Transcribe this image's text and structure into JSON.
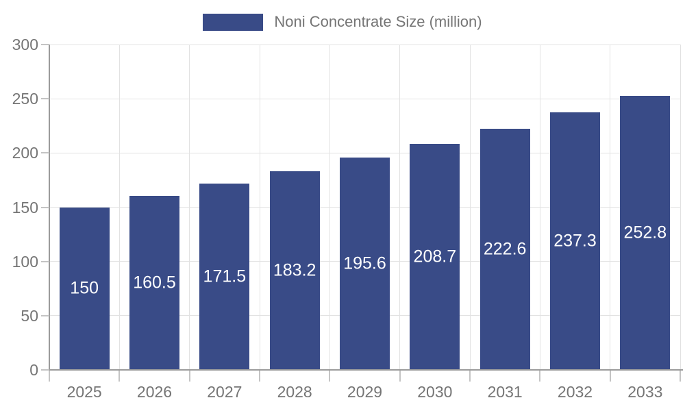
{
  "legend": {
    "label": "Noni Concentrate Size (million)"
  },
  "chart_data": {
    "type": "bar",
    "title": "",
    "legend_position": "top",
    "grid": true,
    "categories": [
      "2025",
      "2026",
      "2027",
      "2028",
      "2029",
      "2030",
      "2031",
      "2032",
      "2033"
    ],
    "series": [
      {
        "name": "Noni Concentrate Size (million)",
        "values": [
          150,
          160.5,
          171.5,
          183.2,
          195.6,
          208.7,
          222.6,
          237.3,
          252.8
        ]
      }
    ],
    "xlabel": "",
    "ylabel": "",
    "ylim": [
      0,
      300
    ],
    "yticks": [
      0,
      50,
      100,
      150,
      200,
      250,
      300
    ],
    "colors": {
      "bar": "#394b87",
      "value_label": "#ffffff",
      "axis_text": "#757575",
      "legend_text": "#757575",
      "axis_line": "#9b9b9b",
      "tick_line": "#c4c4c4",
      "gridline": "#e2e2e2",
      "background": "#ffffff"
    }
  }
}
